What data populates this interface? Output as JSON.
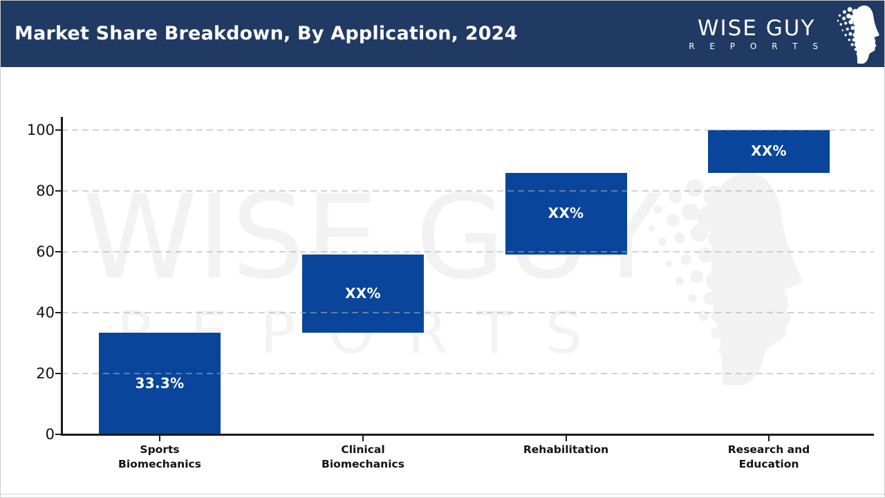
{
  "header": {
    "title": "Market Share Breakdown, By Application, 2024",
    "logo": {
      "line1": "WISE GUY",
      "line2": "R E P O R T S"
    }
  },
  "watermark": {
    "line1": "WISE GUY",
    "line2": "REPORTS"
  },
  "colors": {
    "header_bg": "#203A64",
    "bar": "#09459A",
    "axis": "#1a1a1a",
    "grid": "#d9d9d9",
    "value_label": "#ffffff",
    "watermark": "#f2f2f2",
    "page_border": "#cccccc"
  },
  "chart_data": {
    "type": "bar",
    "subtype": "floating-waterfall",
    "title": "Market Share Breakdown, By Application, 2024",
    "categories": [
      "Sports\nBiomechanics",
      "Clinical\nBiomechanics",
      "Rehabilitation",
      "Research and\nEducation"
    ],
    "segments": [
      {
        "category": "Sports Biomechanics",
        "start": 0,
        "end": 33.3,
        "label": "33.3%"
      },
      {
        "category": "Clinical Biomechanics",
        "start": 33.3,
        "end": 59.2,
        "label": "XX%"
      },
      {
        "category": "Rehabilitation",
        "start": 59.2,
        "end": 85.9,
        "label": "XX%"
      },
      {
        "category": "Research and Education",
        "start": 85.9,
        "end": 100,
        "label": "XX%"
      }
    ],
    "xlabel": "",
    "ylabel": "",
    "ylim": [
      0,
      100
    ],
    "yticks": [
      0,
      20,
      40,
      60,
      80,
      100
    ],
    "grid": "horizontal-dashed",
    "legend": "none",
    "bar_color": "#09459A"
  }
}
